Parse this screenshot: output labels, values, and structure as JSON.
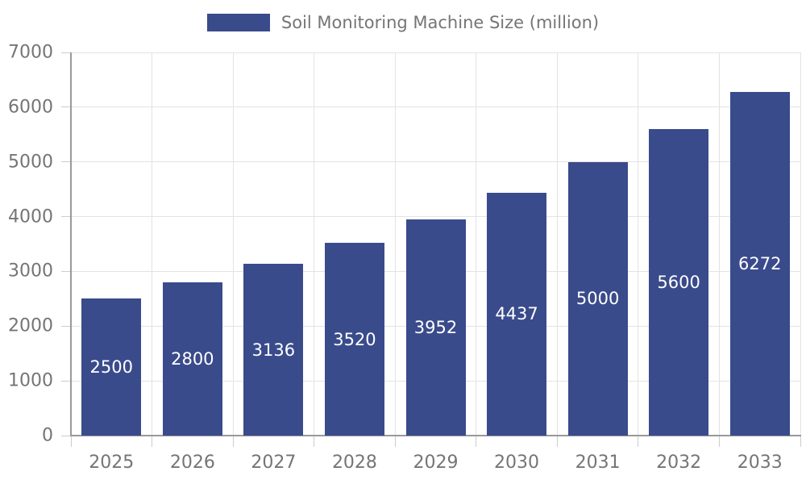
{
  "chart_data": {
    "type": "bar",
    "title": "Soil Monitoring Machine Size (million)",
    "categories": [
      "2025",
      "2026",
      "2027",
      "2028",
      "2029",
      "2030",
      "2031",
      "2032",
      "2033"
    ],
    "values": [
      2500,
      2800,
      3136,
      3520,
      3952,
      4437,
      5000,
      5600,
      6272
    ],
    "series": [
      {
        "name": "Soil Monitoring Machine Size (million)",
        "values": [
          2500,
          2800,
          3136,
          3520,
          3952,
          4437,
          5000,
          5600,
          6272
        ]
      }
    ],
    "xlabel": "",
    "ylabel": "",
    "ylim": [
      0,
      7000
    ],
    "yticks": [
      0,
      1000,
      2000,
      3000,
      4000,
      5000,
      6000,
      7000
    ],
    "grid": true,
    "legend_position": "top-center",
    "bar_labels_inside": true,
    "bar_color": "#3A4B8C",
    "bar_label_color": "#ffffff",
    "axis_text_color": "#757575"
  }
}
